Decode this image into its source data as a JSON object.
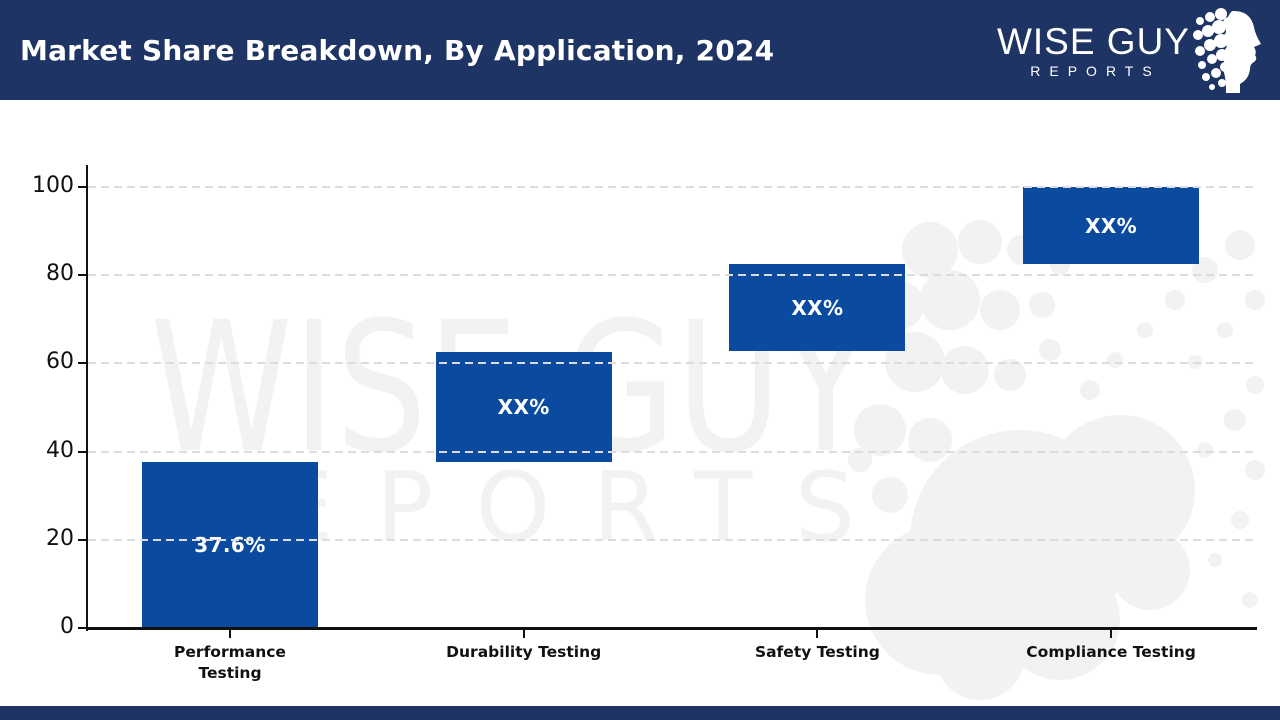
{
  "header": {
    "title": "Market Share Breakdown, By Application, 2024",
    "logo": {
      "wordmark": "WISE GUY",
      "subtext": "REPORTS"
    }
  },
  "chart_data": {
    "type": "bar",
    "variant": "waterfall",
    "title": "Market Share Breakdown, By Application, 2024",
    "categories": [
      "Performance\nTesting",
      "Durability Testing",
      "Safety Testing",
      "Compliance Testing"
    ],
    "bars": [
      {
        "category": "Performance Testing",
        "start": 0,
        "end": 37.6,
        "label": "37.6%"
      },
      {
        "category": "Durability Testing",
        "start": 37.6,
        "end": 62.7,
        "label": "XX%"
      },
      {
        "category": "Safety Testing",
        "start": 62.7,
        "end": 82.5,
        "label": "XX%"
      },
      {
        "category": "Compliance Testing",
        "start": 82.5,
        "end": 100,
        "label": "XX%"
      }
    ],
    "visible_value_labels": [
      "37.6%",
      "XX%",
      "XX%",
      "XX%"
    ],
    "xlabel": "",
    "ylabel": "",
    "ylim": [
      0,
      100
    ],
    "yticks": [
      0,
      20,
      40,
      60,
      80,
      100
    ],
    "grid": "horizontal-dashed-over-bars",
    "legend": "none",
    "watermark_line1": "WISE GUY",
    "watermark_line2": "REPORTS"
  },
  "colors": {
    "header_bg": "#1e3464",
    "footer_bg": "#1e3464",
    "bar": "#0b4b9f",
    "grid": "#dcdcdc",
    "axis": "#111111",
    "watermark": "#f2f2f2"
  }
}
